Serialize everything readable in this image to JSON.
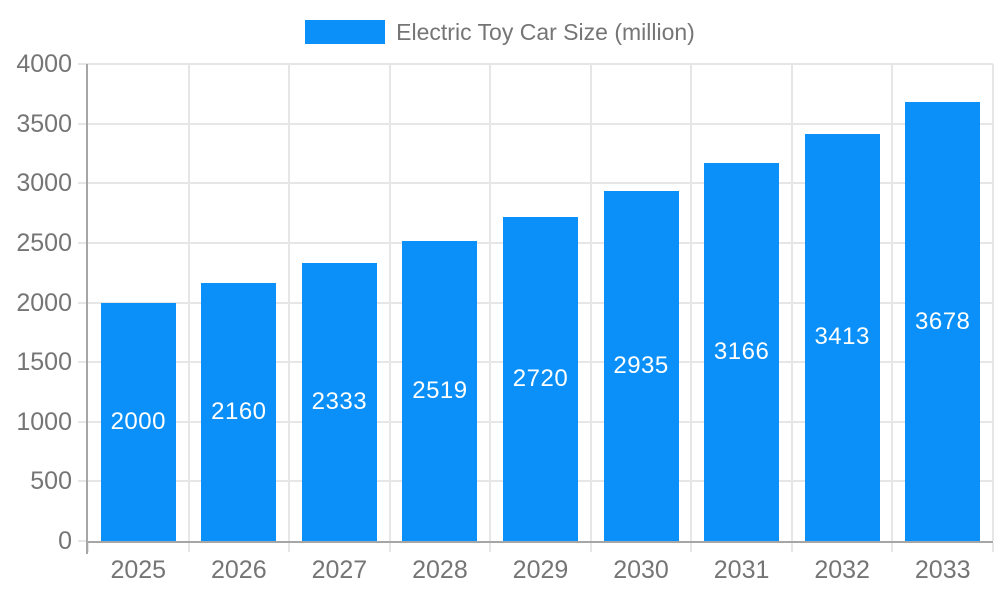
{
  "chart_data": {
    "type": "bar",
    "title": "Electric Toy Car Size (million)",
    "categories": [
      "2025",
      "2026",
      "2027",
      "2028",
      "2029",
      "2030",
      "2031",
      "2032",
      "2033"
    ],
    "values": [
      2000,
      2160,
      2333,
      2519,
      2720,
      2935,
      3166,
      3413,
      3678
    ],
    "xlabel": "",
    "ylabel": "",
    "ylim": [
      0,
      4000
    ],
    "ytick_step": 500,
    "ytick_labels": [
      "0",
      "500",
      "1000",
      "1500",
      "2000",
      "2500",
      "3000",
      "3500",
      "4000"
    ],
    "grid": true,
    "legend_position": "top-center",
    "bar_labels_position": "inside-center",
    "colors": {
      "bar": "#0a90f8",
      "bar_label": "#ffffff",
      "axis": "#a6a6a6",
      "grid": "#e6e6e6",
      "text": "#757575",
      "background": "#ffffff"
    }
  }
}
